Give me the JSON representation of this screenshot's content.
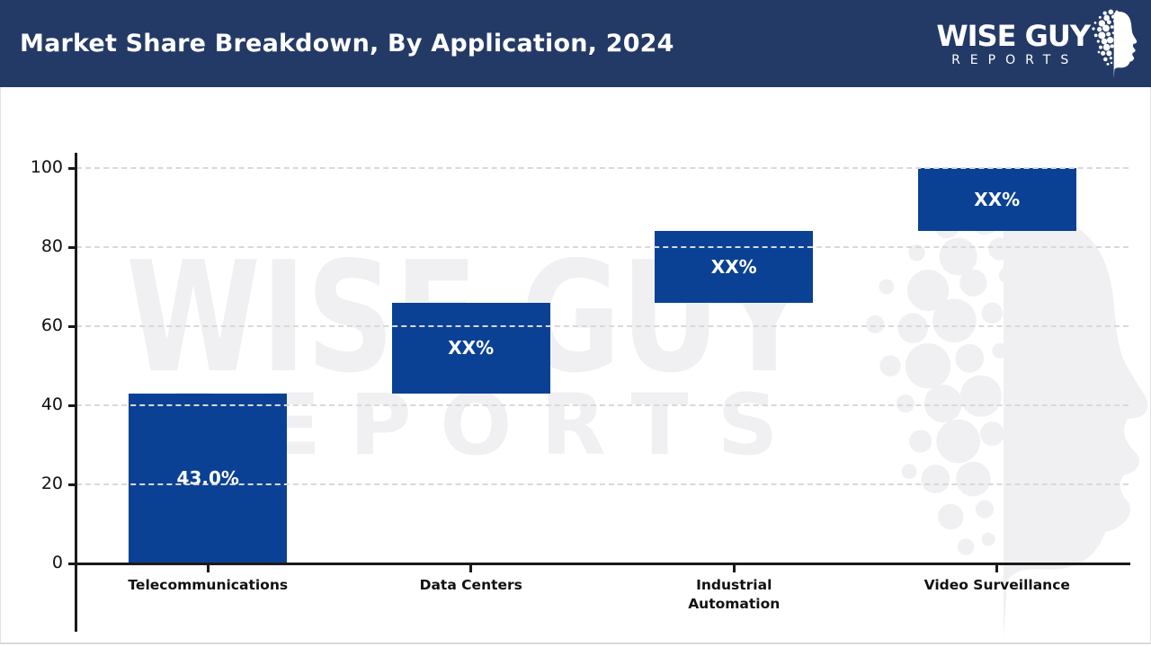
{
  "header": {
    "title": "Market Share Breakdown, By Application, 2024",
    "background_color": "#243a66",
    "logo": {
      "line1": "WISE GUY",
      "line2": "REPORTS",
      "icon": "dotted-face-profile",
      "color": "#ffffff"
    }
  },
  "watermark": {
    "line1": "WISE GUY",
    "line2": "REPORTS",
    "icon": "dotted-face-profile",
    "color": "#f0f0f3"
  },
  "chart_data": {
    "type": "bar",
    "subtype": "waterfall",
    "title": "Market Share Breakdown, By Application, 2024",
    "xlabel": "",
    "ylabel": "",
    "ylim": [
      0,
      100
    ],
    "yticks": [
      0,
      20,
      40,
      60,
      80,
      100
    ],
    "grid": "horizontal-dashed",
    "legend": "none",
    "bar_color": "#0a4195",
    "bar_label_color": "#ffffff",
    "axis_color": "#1a1a1a",
    "gridline_color": "#d9d9d9",
    "categories": [
      "Telecommunications",
      "Data Centers",
      "Industrial\nAutomation",
      "Video Surveillance"
    ],
    "segments": [
      {
        "category": "Telecommunications",
        "start": 0,
        "end": 43,
        "value": 43,
        "label": "43.0%"
      },
      {
        "category": "Data Centers",
        "start": 43,
        "end": 66,
        "value": 23,
        "label": "XX%"
      },
      {
        "category": "Industrial Automation",
        "start": 66,
        "end": 84,
        "value": 18,
        "label": "XX%"
      },
      {
        "category": "Video Surveillance",
        "start": 84,
        "end": 100,
        "value": 16,
        "label": "XX%"
      }
    ]
  }
}
